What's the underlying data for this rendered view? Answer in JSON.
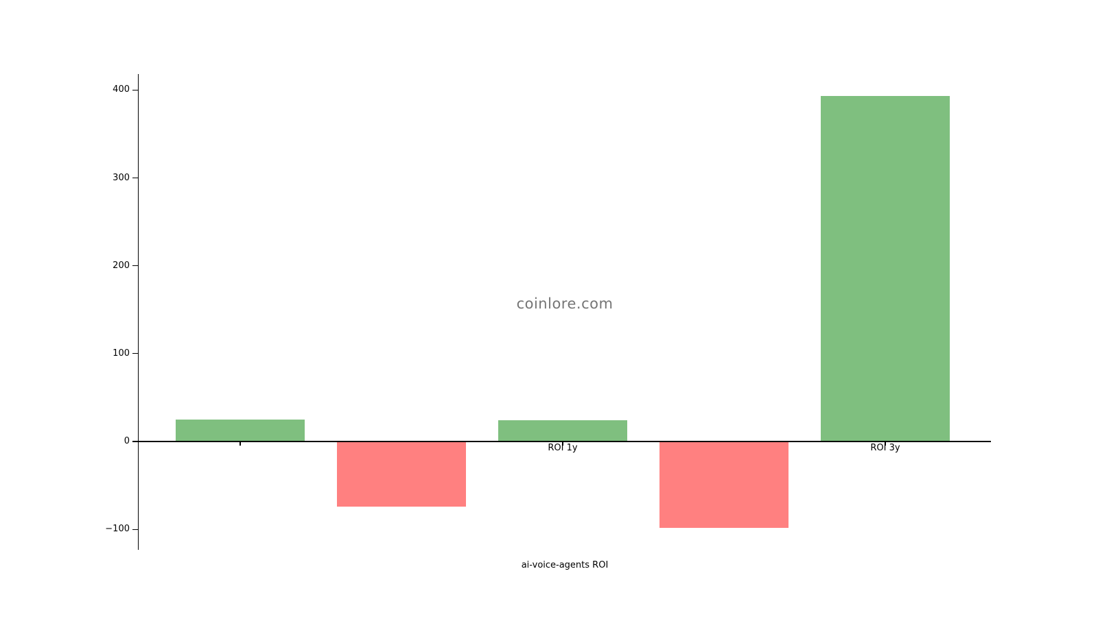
{
  "watermark": "coinlore.com",
  "chart_data": {
    "type": "bar",
    "title": "",
    "xlabel": "ai-voice-agents ROI",
    "ylabel": "",
    "categories": [
      "",
      "",
      "ROI 1y",
      "",
      "ROI 3y"
    ],
    "values": [
      25,
      -74,
      24,
      -98,
      393
    ],
    "y_ticks": [
      400,
      300,
      200,
      100,
      0,
      -100
    ],
    "ylim": [
      -123,
      418
    ],
    "grid": false,
    "legend_position": "none",
    "positive_color": "#7fbf7f",
    "negative_color": "#ff8080",
    "axis_color": "#000000",
    "watermark_color": "#757575",
    "background_color": "#ffffff"
  }
}
